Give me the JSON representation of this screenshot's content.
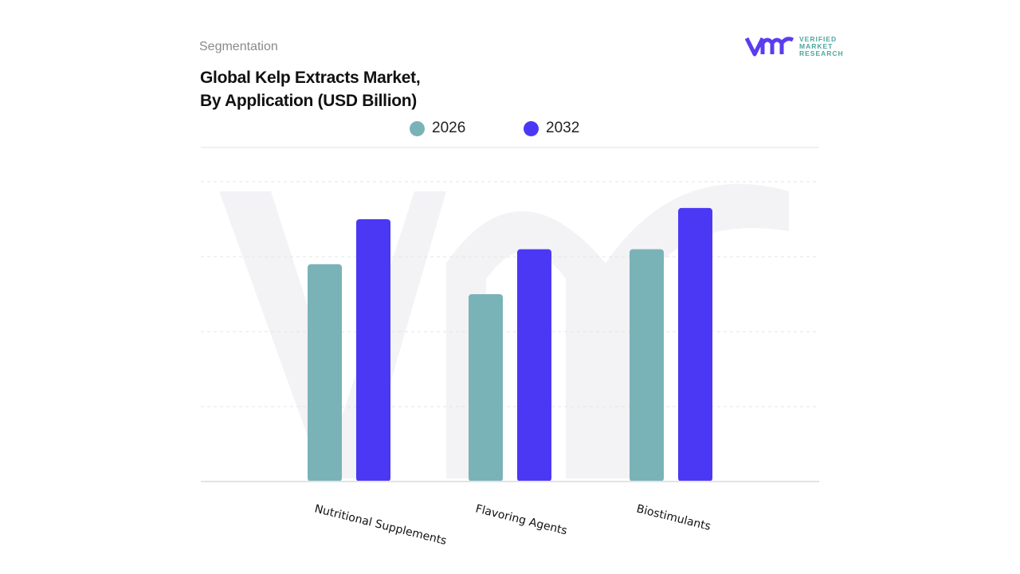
{
  "header": {
    "segment_label": "Segmentation",
    "title_line1": "Global Kelp Extracts Market,",
    "title_line2": "By Application (USD Billion)"
  },
  "logo": {
    "line1": "VERIFIED",
    "line2": "MARKET",
    "line3": "RESEARCH"
  },
  "colors": {
    "2026": "#7ab3b7",
    "2032": "#4b38f5",
    "grid": "#e6e6e6",
    "watermark": "#f1f1f5"
  },
  "chart_data": {
    "type": "bar",
    "title": "Global Kelp Extracts Market, By Application (USD Billion)",
    "categories": [
      "Nutritional Supplements",
      "Flavoring Agents",
      "Biostimulants"
    ],
    "series": [
      {
        "name": "2026",
        "values": [
          2.9,
          2.5,
          3.1
        ]
      },
      {
        "name": "2032",
        "values": [
          3.5,
          3.1,
          3.65
        ]
      }
    ],
    "ylim": [
      0,
      4
    ],
    "grid": true,
    "legend": "top-center",
    "y_tick_labels_shown": false
  }
}
